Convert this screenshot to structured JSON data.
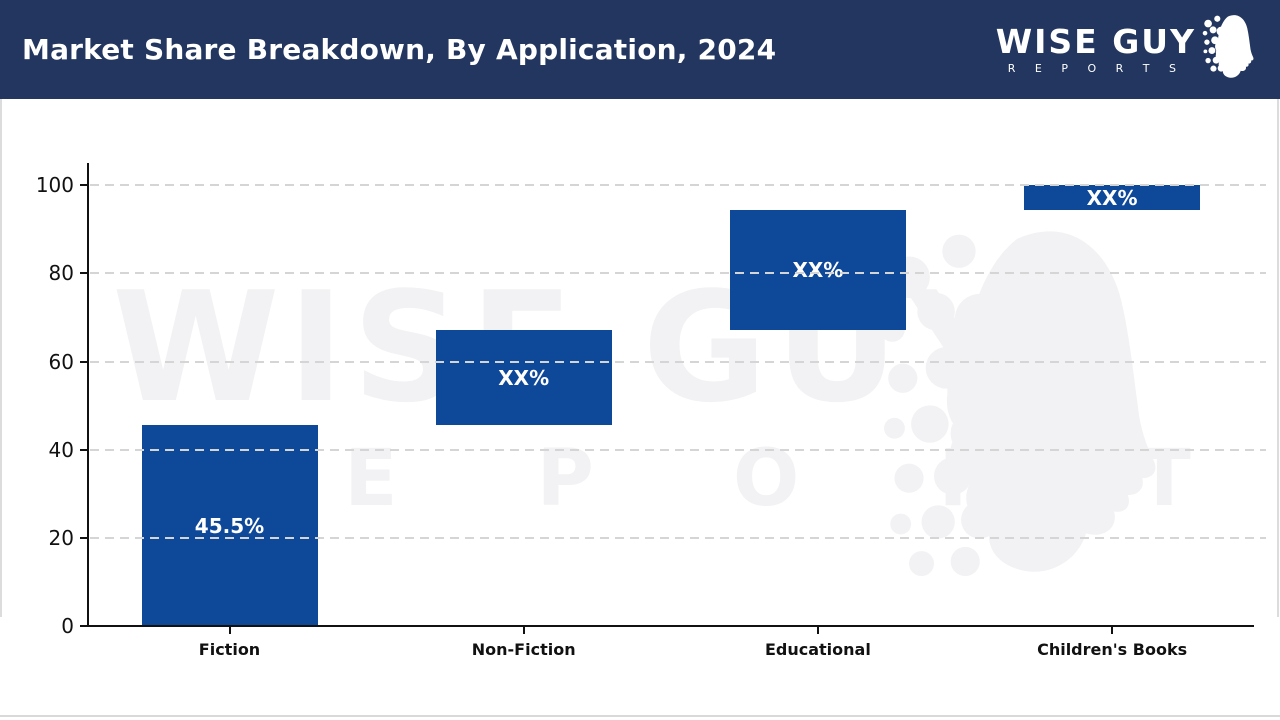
{
  "header": {
    "title": "Market Share Breakdown, By Application, 2024",
    "logo": {
      "line1": "WISE GUY",
      "line2": "R E P O R T S"
    }
  },
  "watermark": {
    "line1": "WISE GUY",
    "line2": "R E P O R T S"
  },
  "colors": {
    "header_bg": "#22365f",
    "bar": "#0e4899",
    "grid": "#d5d5d5",
    "axis": "#111111",
    "text": "#111111",
    "bar_label": "#ffffff",
    "watermark": "#f2f2f4"
  },
  "icons": {
    "logo_head": "dotted-head-profile-icon",
    "watermark_head": "dotted-head-profile-watermark"
  },
  "chart_data": {
    "type": "bar",
    "subtype": "waterfall",
    "title": "Market Share Breakdown, By Application, 2024",
    "xlabel": "",
    "ylabel": "",
    "categories": [
      "Fiction",
      "Non-Fiction",
      "Educational",
      "Children's Books"
    ],
    "segments": [
      {
        "category": "Fiction",
        "start": 0,
        "end": 45.5,
        "value": 45.5,
        "label": "45.5%"
      },
      {
        "category": "Non-Fiction",
        "start": 45.5,
        "end": 67.2,
        "value": 21.7,
        "label": "XX%"
      },
      {
        "category": "Educational",
        "start": 67.2,
        "end": 94.3,
        "value": 27.1,
        "label": "XX%"
      },
      {
        "category": "Children's Books",
        "start": 94.3,
        "end": 100,
        "value": 5.7,
        "label": "XX%"
      }
    ],
    "yticks": [
      0,
      20,
      40,
      60,
      80,
      100
    ],
    "ytick_labels": [
      "0",
      "20",
      "40",
      "60",
      "80",
      "100"
    ],
    "ylim": [
      0,
      105
    ],
    "grid": "horizontal-dashed",
    "legend": false
  }
}
